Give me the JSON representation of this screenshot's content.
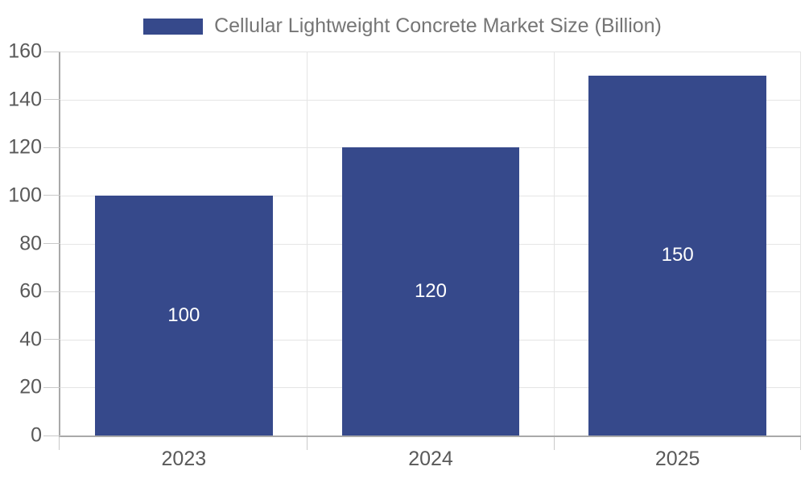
{
  "legend": {
    "label": "Cellular Lightweight Concrete Market Size (Billion)"
  },
  "chart_data": {
    "type": "bar",
    "title": "Cellular Lightweight Concrete Market Size (Billion)",
    "categories": [
      "2023",
      "2024",
      "2025"
    ],
    "values": [
      100,
      120,
      150
    ],
    "value_labels": [
      "100",
      "120",
      "150"
    ],
    "series": [
      {
        "name": "Cellular Lightweight Concrete Market Size (Billion)",
        "values": [
          100,
          120,
          150
        ]
      }
    ],
    "xlabel": "",
    "ylabel": "",
    "ylim": [
      0,
      160
    ],
    "yticks": [
      0,
      20,
      40,
      60,
      80,
      100,
      120,
      140,
      160
    ],
    "grid": true,
    "legend_position": "top",
    "colors": {
      "bar": "#36498b",
      "value_label": "#ffffff",
      "tick_label": "#595959",
      "legend_text": "#757575",
      "gridline": "#e5e5e5",
      "axis_line": "#a9a9a9",
      "tick_mark": "#c9c9c9",
      "background": "#ffffff"
    }
  }
}
